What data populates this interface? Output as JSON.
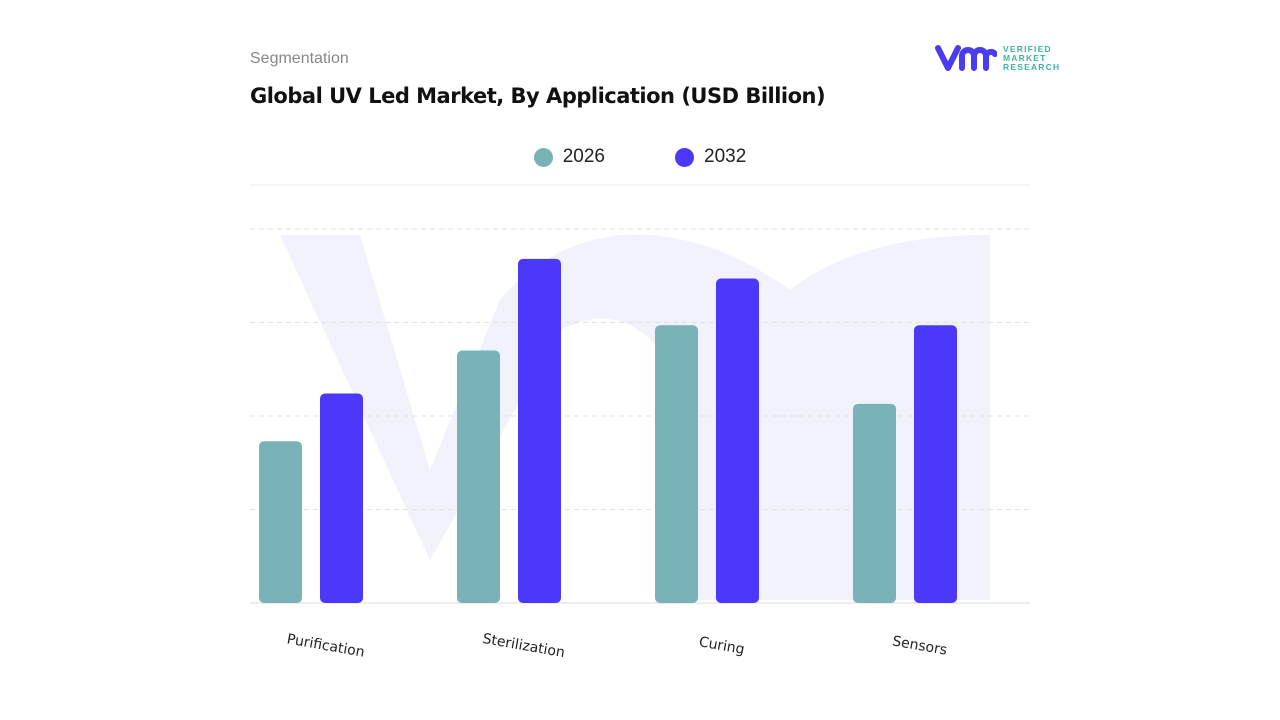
{
  "header": {
    "section": "Segmentation",
    "title": "Global UV Led Market, By Application (USD Billion)"
  },
  "logo": {
    "mark": "vmr",
    "text": [
      "VERIFIED",
      "MARKET",
      "RESEARCH"
    ],
    "brand_color": "#4b3cf0",
    "text_color": "#3cb4a4"
  },
  "chart_data": {
    "type": "bar",
    "title": "Global UV Led Market, By Application (USD Billion)",
    "categories": [
      "Purification",
      "Sterilization",
      "Curing",
      "Sensors"
    ],
    "series": [
      {
        "name": "2026",
        "color": "#7ab3b7",
        "values": [
          1.73,
          2.7,
          2.97,
          2.13
        ]
      },
      {
        "name": "2032",
        "color": "#4b38f8",
        "values": [
          2.24,
          3.68,
          3.47,
          2.97
        ]
      }
    ],
    "xlabel": "",
    "ylabel": "",
    "ylim": [
      0,
      4
    ],
    "grid": true,
    "legend": "top-center",
    "y_tick_labels_shown": false
  }
}
